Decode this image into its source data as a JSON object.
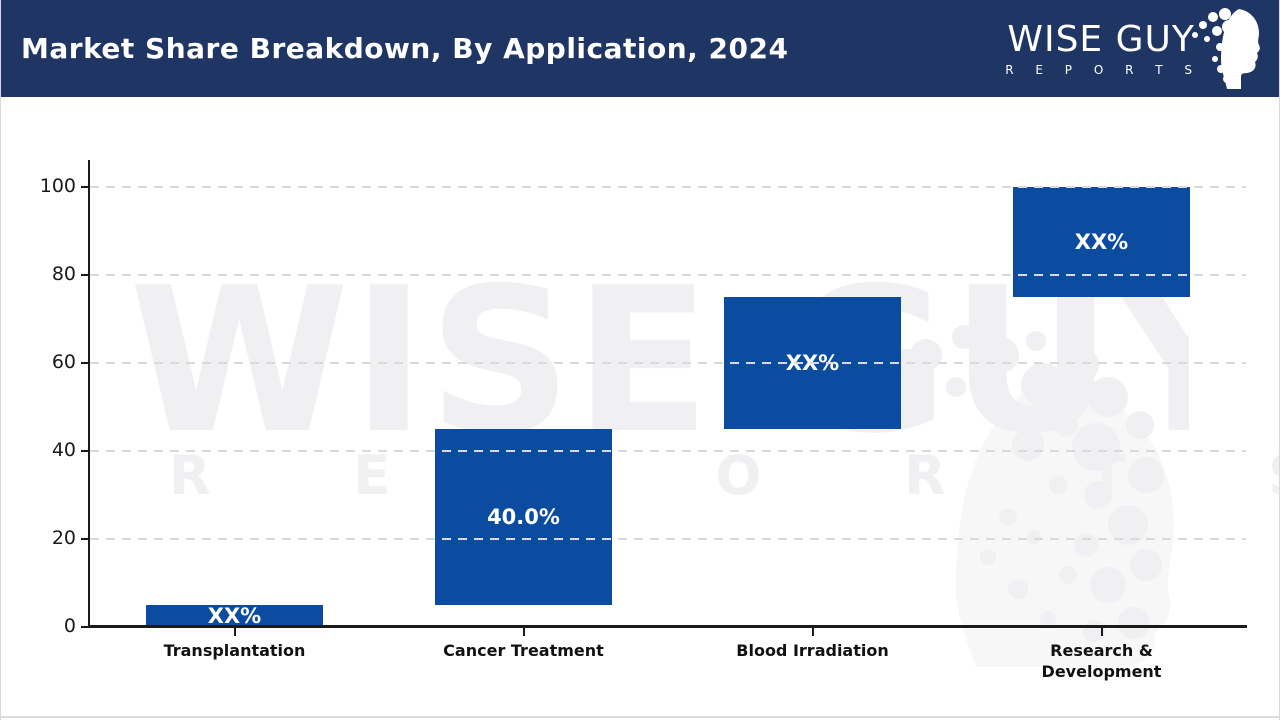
{
  "header": {
    "title": "Market Share Breakdown, By Application, 2024",
    "logo": {
      "name": "WISE GUY",
      "tagline": "R E P O R T S"
    }
  },
  "watermark": {
    "big_text": "WISE GUY",
    "tagline": "R E P O R T S"
  },
  "chart_data": {
    "type": "bar",
    "variant": "floating-waterfall",
    "title": "Market Share Breakdown, By Application, 2024",
    "categories": [
      "Transplantation",
      "Cancer Treatment",
      "Blood Irradiation",
      "Research & Development"
    ],
    "bars": [
      {
        "category": "Transplantation",
        "start": 0,
        "end": 5,
        "label": "XX%"
      },
      {
        "category": "Cancer Treatment",
        "start": 5,
        "end": 45,
        "label": "40.0%"
      },
      {
        "category": "Blood Irradiation",
        "start": 45,
        "end": 75,
        "label": "XX%"
      },
      {
        "category": "Research & Development",
        "start": 75,
        "end": 100,
        "label": "XX%"
      }
    ],
    "ylim": [
      0,
      100
    ],
    "yticks": [
      0,
      20,
      40,
      60,
      80,
      100
    ],
    "xlabel": "",
    "ylabel": "",
    "grid": {
      "axis": "y",
      "style": "dashed",
      "color": "#d9d9d9",
      "above_bars": true
    },
    "legend": null,
    "bar_color": "#0B4BA0",
    "value_label_color": "#ffffff"
  },
  "colors": {
    "header_bg": "#1F3564",
    "bar": "#0B4BA0",
    "axis": "#1a1a1a",
    "grid": "#d9d9d9",
    "watermark": "#f0f0f2",
    "page_bg": "#ffffff",
    "border": "#d9d9d9"
  }
}
